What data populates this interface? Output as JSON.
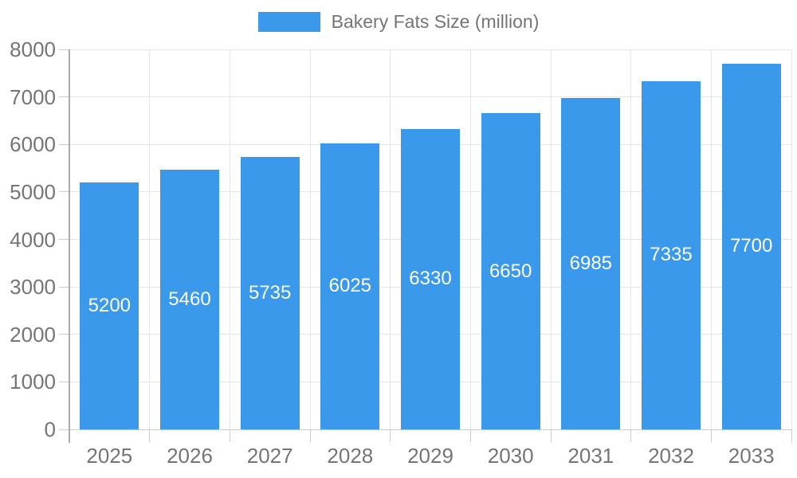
{
  "chart_data": {
    "type": "bar",
    "title": "",
    "series_name": "Bakery Fats Size (million)",
    "categories": [
      "2025",
      "2026",
      "2027",
      "2028",
      "2029",
      "2030",
      "2031",
      "2032",
      "2033"
    ],
    "values": [
      5200,
      5460,
      5735,
      6025,
      6330,
      6650,
      6985,
      7335,
      7700
    ],
    "xlabel": "",
    "ylabel": "",
    "ylim": [
      0,
      8000
    ],
    "yticks": [
      0,
      1000,
      2000,
      3000,
      4000,
      5000,
      6000,
      7000,
      8000
    ],
    "grid": true,
    "legend_position": "top-center",
    "bar_labels_visible": true,
    "colors": {
      "bar": "#3B99EC",
      "bar_label_text": "#FFFFFF",
      "axis_text": "#757575",
      "legend_text": "#757575",
      "gridline": "#E6E6E6",
      "tick": "#CCCCCC",
      "y_axis_line": "#ABABAB",
      "x_axis_line": "#CCCCCC",
      "background": "#FFFFFF"
    }
  }
}
